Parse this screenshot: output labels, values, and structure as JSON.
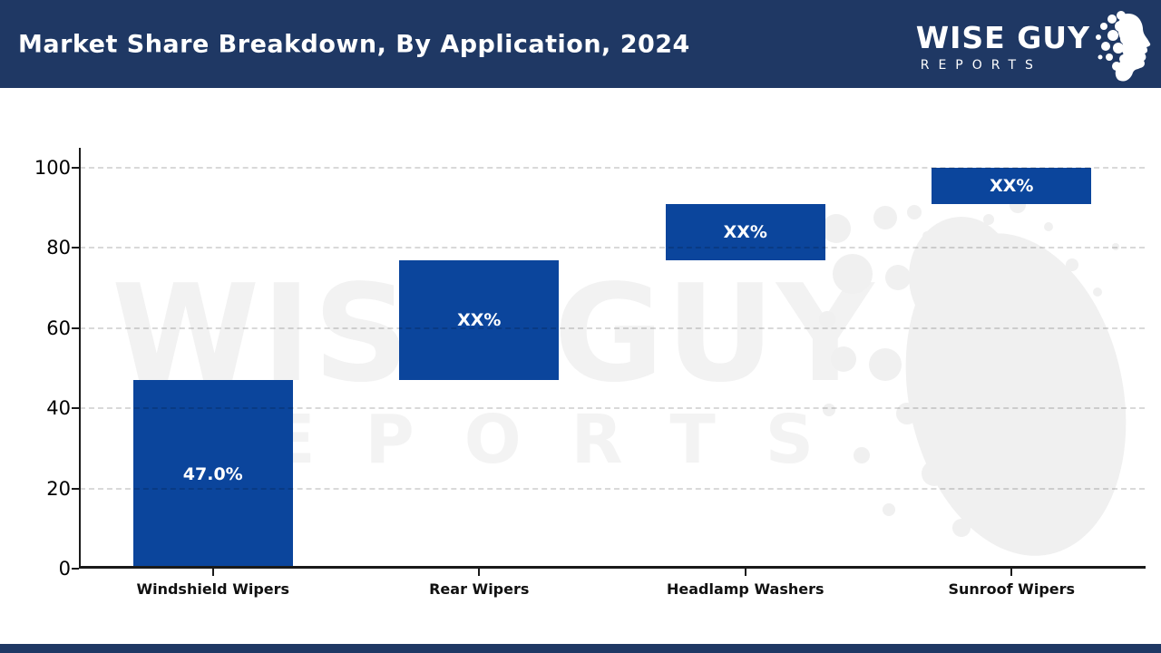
{
  "header": {
    "title": "Market Share Breakdown, By Application, 2024",
    "bg_color": "#1F3864",
    "logo": {
      "line1": "WISE GUY",
      "line2": "REPORTS"
    }
  },
  "watermark": {
    "line1": "WISE GUY",
    "line2": "REPORTS"
  },
  "chart_data": {
    "type": "bar",
    "subtype": "waterfall",
    "title": "Market Share Breakdown, By Application, 2024",
    "categories": [
      "Windshield Wipers",
      "Rear Wipers",
      "Headlamp Washers",
      "Sunroof Wipers"
    ],
    "series": [
      {
        "name": "Market share (%)",
        "bar_bottoms": [
          0,
          47,
          77,
          91
        ],
        "bar_tops": [
          47,
          77,
          91,
          100
        ],
        "increments": [
          47,
          30,
          14,
          9
        ],
        "labels": [
          "47.0%",
          "XX%",
          "XX%",
          "XX%"
        ]
      }
    ],
    "xlabel": "",
    "ylabel": "",
    "ylim": [
      0,
      105
    ],
    "yticks": [
      0,
      20,
      40,
      60,
      80,
      100
    ],
    "grid": "horizontal-dashed",
    "legend": "none",
    "bar_color": "#0B459C",
    "bar_label_color": "#FFFFFF"
  },
  "footer": {
    "bg_color": "#1F3864"
  }
}
